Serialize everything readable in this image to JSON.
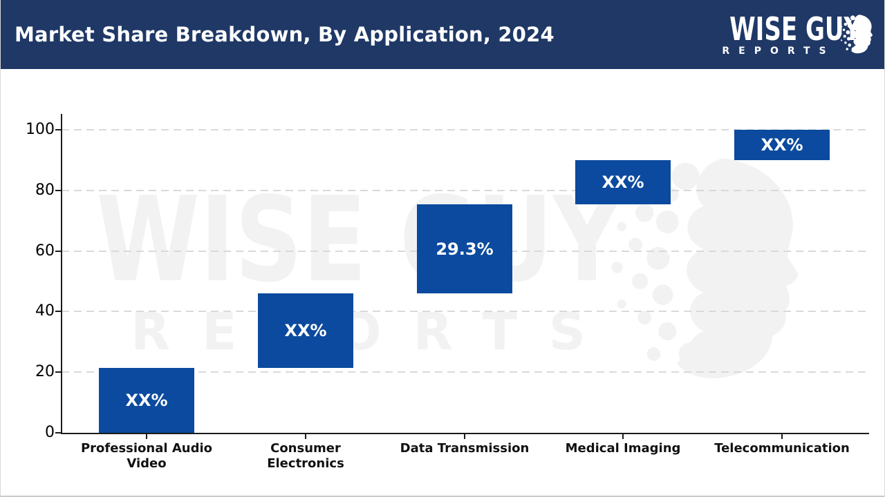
{
  "header": {
    "title": "Market Share Breakdown, By Application, 2024",
    "logo": {
      "brand": "WISE GUY",
      "sub": "REPORTS"
    }
  },
  "watermark": {
    "brand": "WISE GUY",
    "sub": "REPORTS"
  },
  "chart_data": {
    "type": "bar",
    "subtype": "waterfall-floating-bars",
    "title": "Market Share Breakdown, By Application, 2024",
    "categories": [
      "Professional Audio Video",
      "Consumer Electronics",
      "Data Transmission",
      "Medical Imaging",
      "Telecommunication"
    ],
    "category_label_lines": [
      [
        "Professional Audio",
        "Video"
      ],
      [
        "Consumer",
        "Electronics"
      ],
      [
        "Data Transmission"
      ],
      [
        "Medical Imaging"
      ],
      [
        "Telecommunication"
      ]
    ],
    "bars": [
      {
        "category": "Professional Audio Video",
        "label": "XX%",
        "start": 0,
        "end": 21.5
      },
      {
        "category": "Consumer Electronics",
        "label": "XX%",
        "start": 21.5,
        "end": 46.0
      },
      {
        "category": "Data Transmission",
        "label": "29.3%",
        "start": 46.0,
        "end": 75.3
      },
      {
        "category": "Medical Imaging",
        "label": "XX%",
        "start": 75.3,
        "end": 90.0
      },
      {
        "category": "Telecommunication",
        "label": "XX%",
        "start": 90.0,
        "end": 100.0
      }
    ],
    "xlabel": "",
    "ylabel": "",
    "y_ticks": [
      0,
      20,
      40,
      60,
      80,
      100
    ],
    "ylim": [
      0,
      100
    ],
    "grid": "horizontal-dashed",
    "legend": "none",
    "colors": {
      "bar": "#0b4a9e",
      "header_bg": "#1f3866",
      "grid": "#d9d9d9",
      "axis": "#1a1a1a",
      "bar_label": "#ffffff",
      "watermark": "#f2f2f2"
    }
  }
}
